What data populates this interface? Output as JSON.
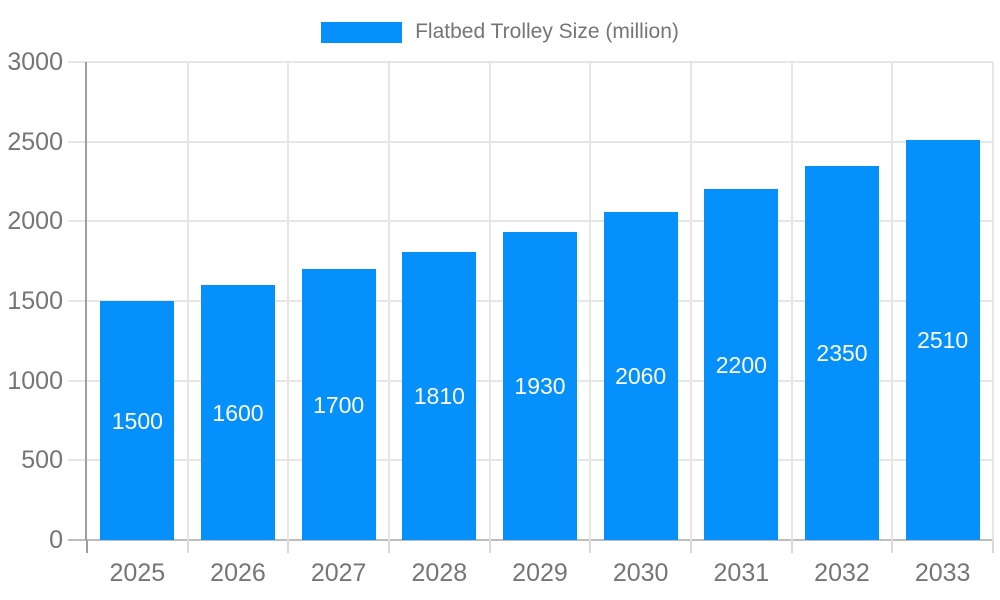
{
  "legend": {
    "label": "Flatbed Trolley Size (million)"
  },
  "chart_data": {
    "type": "bar",
    "title": "Flatbed Trolley Size (million)",
    "categories": [
      "2025",
      "2026",
      "2027",
      "2028",
      "2029",
      "2030",
      "2031",
      "2032",
      "2033"
    ],
    "values": [
      1500,
      1600,
      1700,
      1810,
      1930,
      2060,
      2200,
      2350,
      2510
    ],
    "value_labels": [
      "1500",
      "1600",
      "1700",
      "1810",
      "1930",
      "2060",
      "2200",
      "2350",
      "2510"
    ],
    "xlabel": "",
    "ylabel": "",
    "ylim": [
      0,
      3000
    ],
    "ytick_step": 500,
    "yticks": [
      0,
      500,
      1000,
      1500,
      2000,
      2500,
      3000
    ],
    "grid": true,
    "legend_position": "top",
    "colors": {
      "bar": "#0590FB",
      "axis_label": "#757575",
      "gridline": "#E6E6E6",
      "boundary_tick": "#D9D9D9",
      "zero_line": "#BDBDBD",
      "axis_line": "#9E9E9E",
      "value_label": "#FFFFFF",
      "background": "#FFFFFF"
    }
  }
}
